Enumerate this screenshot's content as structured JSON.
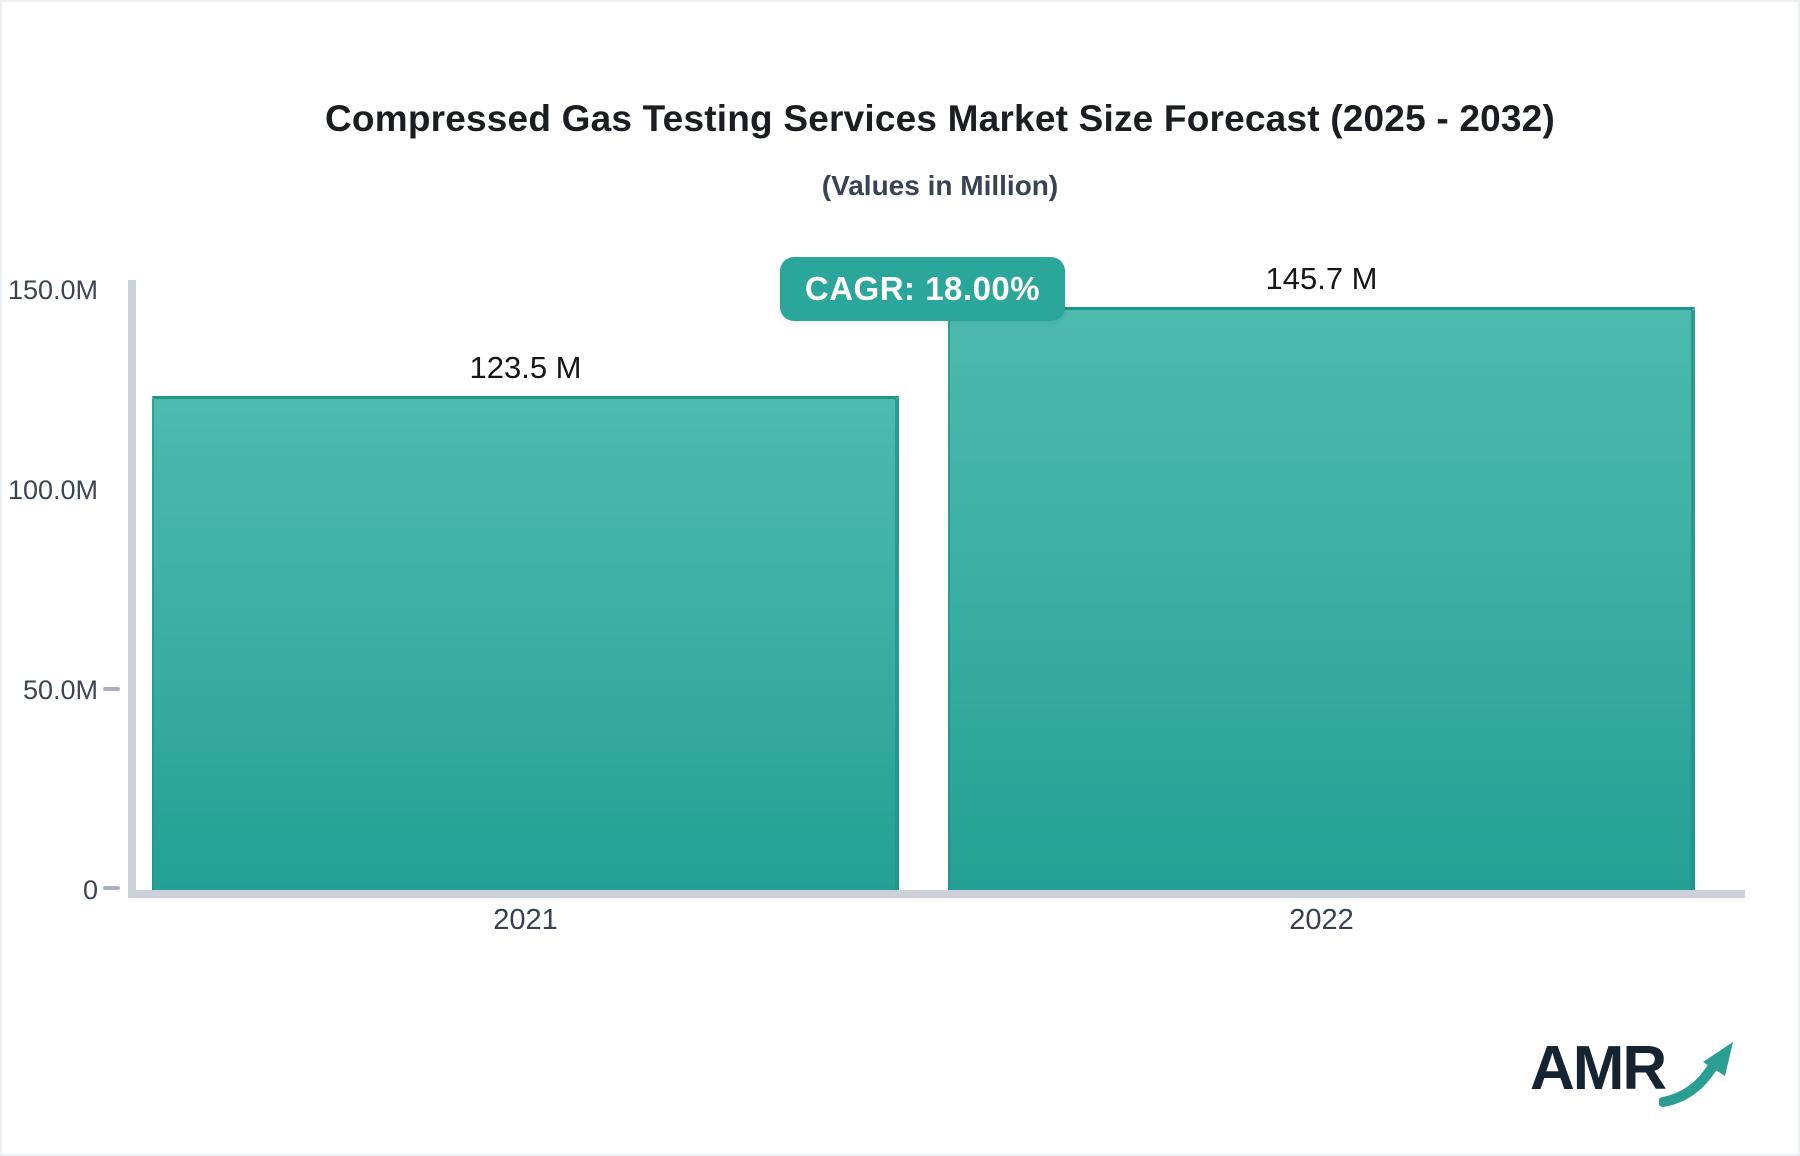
{
  "title": "Compressed Gas Testing Services Market Size Forecast (2025 - 2032)",
  "subtitle": "(Values in Million)",
  "cagr_badge": "CAGR: 18.00%",
  "logo": {
    "text": "AMR",
    "arrow_icon": "trending-up-arrow-icon",
    "arrow_color": "#2a9e93"
  },
  "colors": {
    "bar_gradient_top": "#4dbaad",
    "bar_gradient_bottom": "#23a093",
    "bar_edge": "#1f9488",
    "badge_background": "#2ba69a",
    "axis_line": "#ccd1d9",
    "tick_label": "#3e4653",
    "title_text": "#1a1d21"
  },
  "chart_data": {
    "type": "bar",
    "title": "Compressed Gas Testing Services Market Size Forecast (2025 - 2032)",
    "subtitle": "(Values in Million)",
    "categories": [
      "2021",
      "2022"
    ],
    "values": [
      123.5,
      145.7
    ],
    "value_labels": [
      "123.5 M",
      "145.7 M"
    ],
    "unit": "Million",
    "cagr_percent": "18.00%",
    "ylim": [
      0,
      150
    ],
    "yticks": [
      {
        "value": 150,
        "label": "150.0M"
      },
      {
        "value": 100,
        "label": "100.0M"
      },
      {
        "value": 50,
        "label": "50.0M"
      },
      {
        "value": 0,
        "label": "0"
      }
    ],
    "grid": false,
    "legend": false,
    "bar_orientation": "vertical"
  }
}
